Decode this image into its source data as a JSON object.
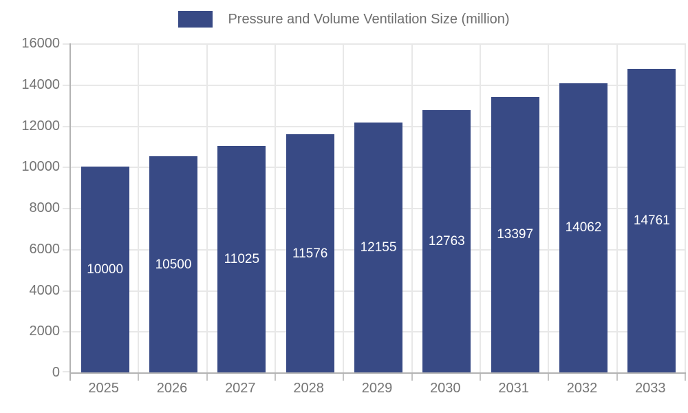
{
  "legend": {
    "label": "Pressure and Volume Ventilation Size (million)"
  },
  "chart_data": {
    "type": "bar",
    "title": "Pressure and Volume Ventilation Size (million)",
    "series_name": "Pressure and Volume Ventilation Size (million)",
    "categories": [
      "2025",
      "2026",
      "2027",
      "2028",
      "2029",
      "2030",
      "2031",
      "2032",
      "2033"
    ],
    "values": [
      10000,
      10500,
      11025,
      11576,
      12155,
      12763,
      13397,
      14062,
      14761
    ],
    "xlabel": "",
    "ylabel": "",
    "ylim": [
      0,
      16000
    ],
    "yticks": [
      0,
      2000,
      4000,
      6000,
      8000,
      10000,
      12000,
      14000,
      16000
    ],
    "grid": true,
    "legend_position": "top",
    "colors": {
      "bar": "#384A85",
      "value_label": "#ffffff",
      "axis_text": "#757575",
      "legend_text": "#6e6e6e",
      "gridline": "#e8e8e8",
      "axis_line": "#b3b3b3",
      "tick": "#c4c4c4"
    }
  }
}
